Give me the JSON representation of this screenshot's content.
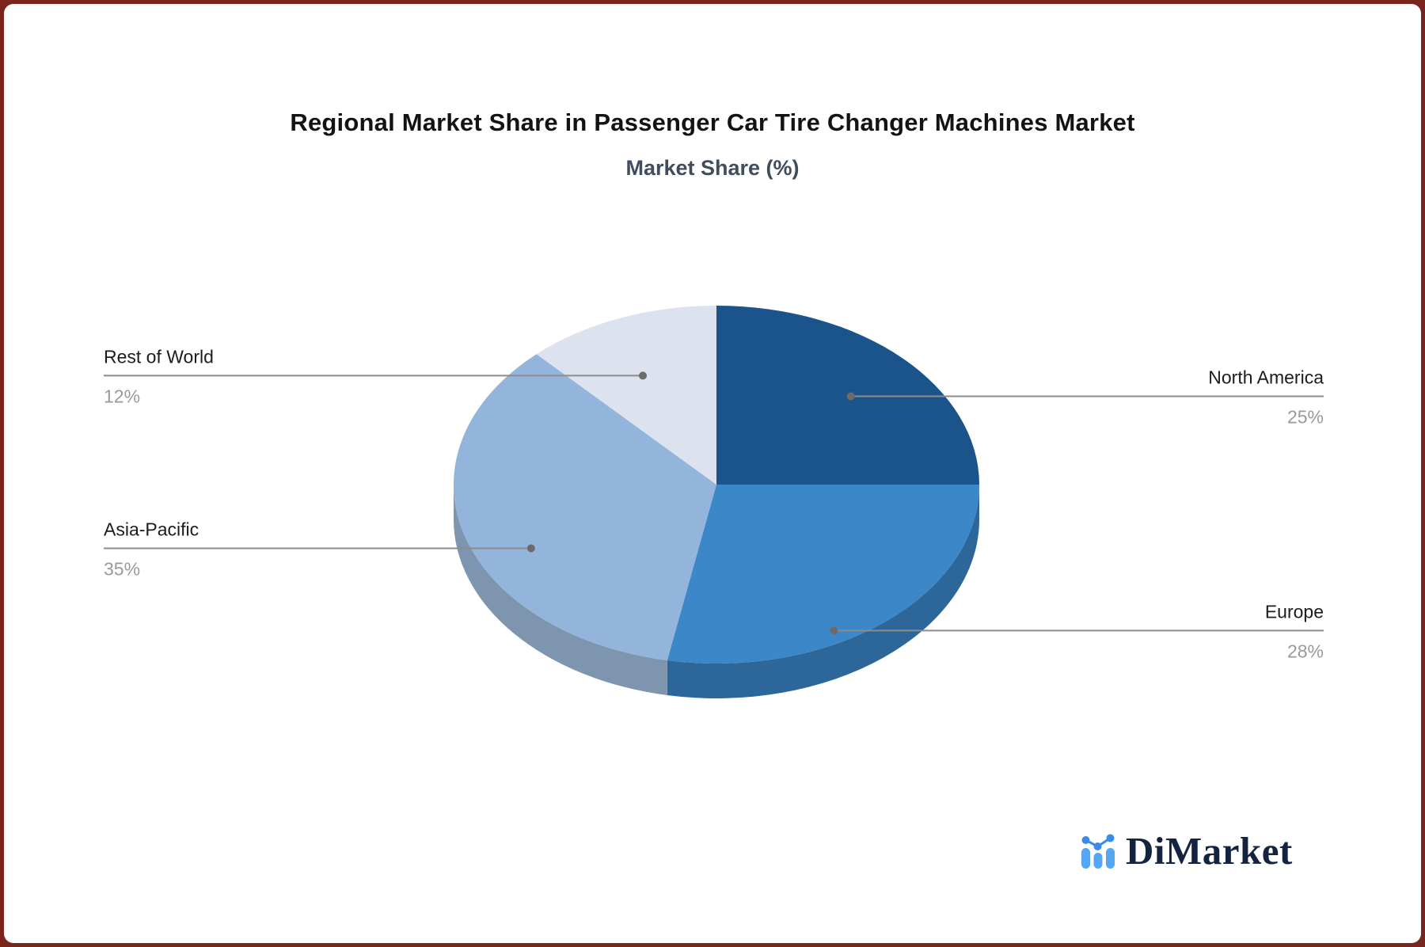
{
  "chart_data": {
    "type": "pie",
    "title": "Regional Market Share in Passenger Car Tire Changer Machines Market",
    "subtitle": "Market Share (%)",
    "unit": "%",
    "effect": "3d",
    "start_angle": "top",
    "direction": "clockwise",
    "legend_position": "callout-labels",
    "slices": [
      {
        "label": "North America",
        "value": 25,
        "display": "25%",
        "side": "right",
        "color": "#1A548B",
        "wall_color": "#16476F"
      },
      {
        "label": "Europe",
        "value": 28,
        "display": "28%",
        "side": "right",
        "color": "#3B87C8",
        "wall_color": "#2D679A"
      },
      {
        "label": "Asia-Pacific",
        "value": 35,
        "display": "35%",
        "side": "left",
        "color": "#93B5DB",
        "wall_color": "#7E95AF"
      },
      {
        "label": "Rest of World",
        "value": 12,
        "display": "12%",
        "side": "left",
        "color": "#DCE3EF",
        "wall_color": "#B9C2D1"
      }
    ],
    "label_color": "#1c1c1c",
    "value_color": "#9a9a9a",
    "leader_color": "#8c8c8c",
    "title_color": "#131313",
    "subtitle_color": "#414d5d"
  },
  "branding": {
    "logo_text": "DiMarket",
    "logo_icon": "bar-line-chart-icon",
    "logo_text_color": "#15243e",
    "logo_icon_bar_color": "#55a7f3",
    "logo_icon_dot_color": "#3a8be8"
  },
  "page": {
    "frame_color": "#7a241e",
    "background_color": "#ffffff"
  }
}
